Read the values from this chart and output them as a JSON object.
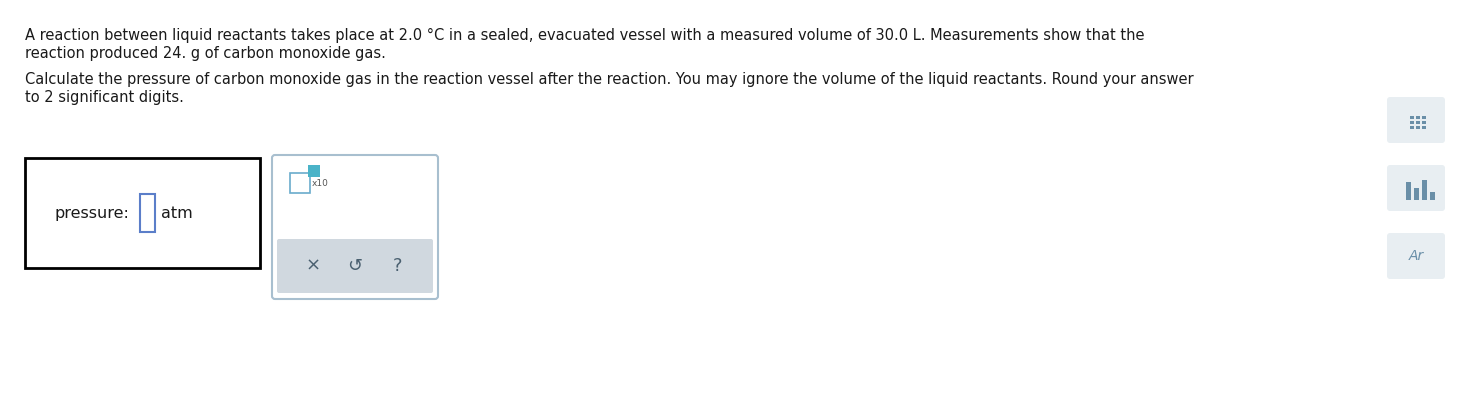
{
  "bg_color": "#ffffff",
  "paragraph1_line1": "A reaction between liquid reactants takes place at 2.0 °C in a sealed, evacuated vessel with a measured volume of 30.0 L. Measurements show that the",
  "paragraph1_line2": "reaction produced 24. g of carbon monoxide gas.",
  "paragraph2_line1": "Calculate the pressure of carbon monoxide gas in the reaction vessel after the reaction. You may ignore the volume of the liquid reactants. Round your answer",
  "paragraph2_line2": "to 2 significant digits.",
  "text_color": "#1a1a1a",
  "text_fontsize": 10.5,
  "answer_label": "pressure:",
  "answer_unit": "atm",
  "input_box_color_edge": "#5b7ec9",
  "keypad_border_color": "#a8bfcf",
  "icon_fill_color": "#4ab3c8",
  "icon_bg_color": "#e8eef2",
  "gray_bar_color": "#d0d8df",
  "btn_color": "#4a6070",
  "sidebar_bg": "#e8eef2",
  "sidebar_icon_color": "#6a8fa8"
}
